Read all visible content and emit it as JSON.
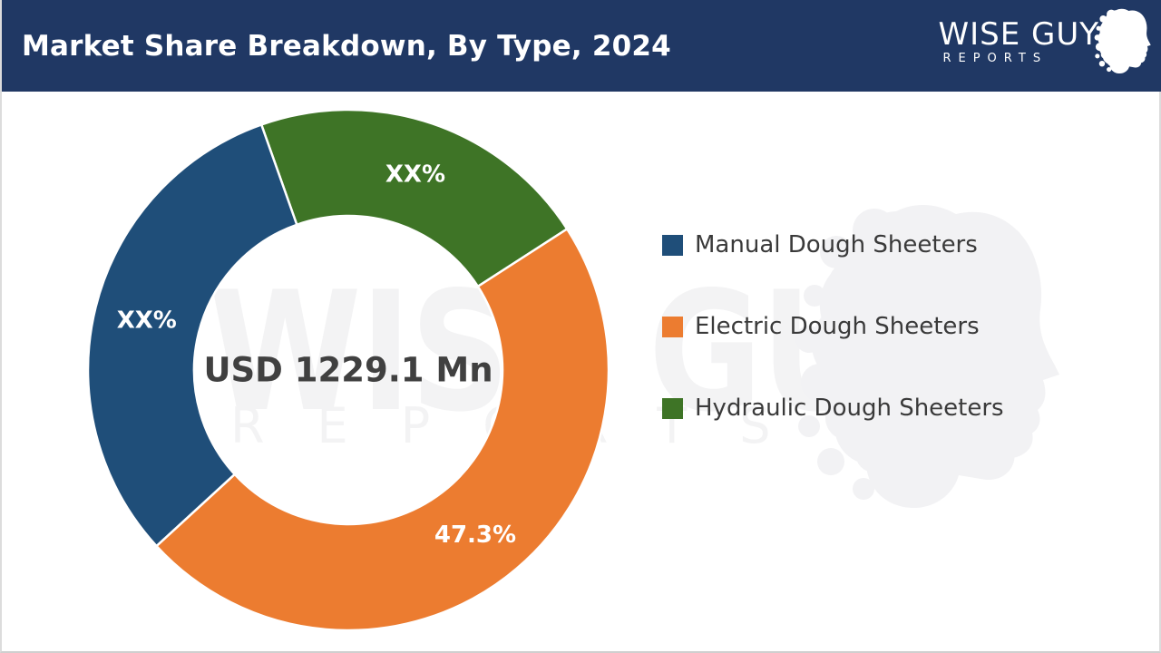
{
  "header": {
    "title": "Market Share Breakdown, By Type, 2024",
    "bg_color": "#203864",
    "logo": {
      "line1": "WISE GUY",
      "line2": "REPORTS"
    }
  },
  "chart_data": {
    "type": "pie",
    "subtype": "donut",
    "title": "Market Share Breakdown, By Type, 2024",
    "center_label": "USD 1229.1 Mn",
    "unit": "percent share",
    "start_angle_deg": -19.5,
    "draw_order": [
      2,
      1,
      0
    ],
    "legend_position": "right",
    "segments": [
      {
        "label": "Manual Dough Sheeters",
        "color": "#1f4e79",
        "value_pct": 31.4,
        "display": "XX%"
      },
      {
        "label": "Electric Dough Sheeters",
        "color": "#ec7c30",
        "value_pct": 47.3,
        "display": "47.3%"
      },
      {
        "label": "Hydraulic Dough Sheeters",
        "color": "#3e7426",
        "value_pct": 21.3,
        "display": "XX%"
      }
    ]
  },
  "watermark": {
    "line1": "WISE GUY",
    "line2": "REPORTS"
  }
}
